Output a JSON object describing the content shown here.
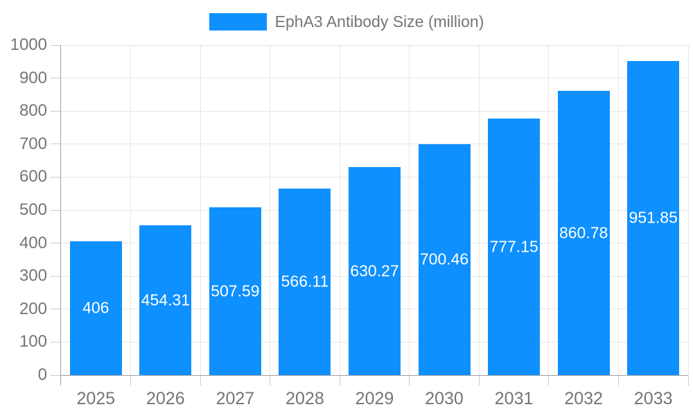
{
  "chart_data": {
    "type": "bar",
    "title": "",
    "legend": {
      "label": "EphA3 Antibody Size (million)",
      "position": "top-center"
    },
    "categories": [
      "2025",
      "2026",
      "2027",
      "2028",
      "2029",
      "2030",
      "2031",
      "2032",
      "2033"
    ],
    "series": [
      {
        "name": "EphA3 Antibody Size (million)",
        "values": [
          406,
          454.31,
          507.59,
          566.11,
          630.27,
          700.46,
          777.15,
          860.78,
          951.85
        ]
      }
    ],
    "xlabel": "",
    "ylabel": "",
    "ylim": [
      0,
      1000
    ],
    "ytick_step": 100,
    "yticks": [
      0,
      100,
      200,
      300,
      400,
      500,
      600,
      700,
      800,
      900,
      1000
    ],
    "grid": true,
    "value_labels": "centered-inside-bars",
    "colors": {
      "bar": "#0E90FF",
      "value_text": "#FFFFFF",
      "axis_text": "#757575",
      "grid": "#E6E6E6",
      "tick": "#CCCCCC",
      "axis_line": "#9E9E9E",
      "background": "#FFFFFF"
    }
  }
}
